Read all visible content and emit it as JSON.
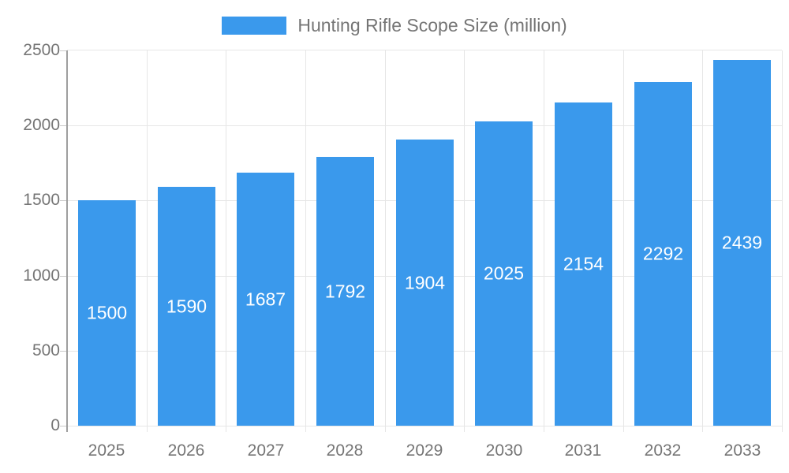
{
  "legend": {
    "label": "Hunting Rifle Scope Size (million)",
    "swatch_color": "#3a99ec"
  },
  "chart_data": {
    "type": "bar",
    "title": "Hunting Rifle Scope Size (million)",
    "categories": [
      "2025",
      "2026",
      "2027",
      "2028",
      "2029",
      "2030",
      "2031",
      "2032",
      "2033"
    ],
    "values": [
      1500,
      1590,
      1687,
      1792,
      1904,
      2025,
      2154,
      2292,
      2439
    ],
    "xlabel": "",
    "ylabel": "",
    "ylim": [
      0,
      2500
    ],
    "yticks": [
      0,
      500,
      1000,
      1500,
      2000,
      2500
    ],
    "grid": true,
    "legend_position": "top",
    "bar_color": "#3a99ec",
    "value_label_color": "#ffffff",
    "axis_text_color": "#757575",
    "grid_color": "#e6e6e6",
    "axis_line_color": "#9e9e9e"
  }
}
